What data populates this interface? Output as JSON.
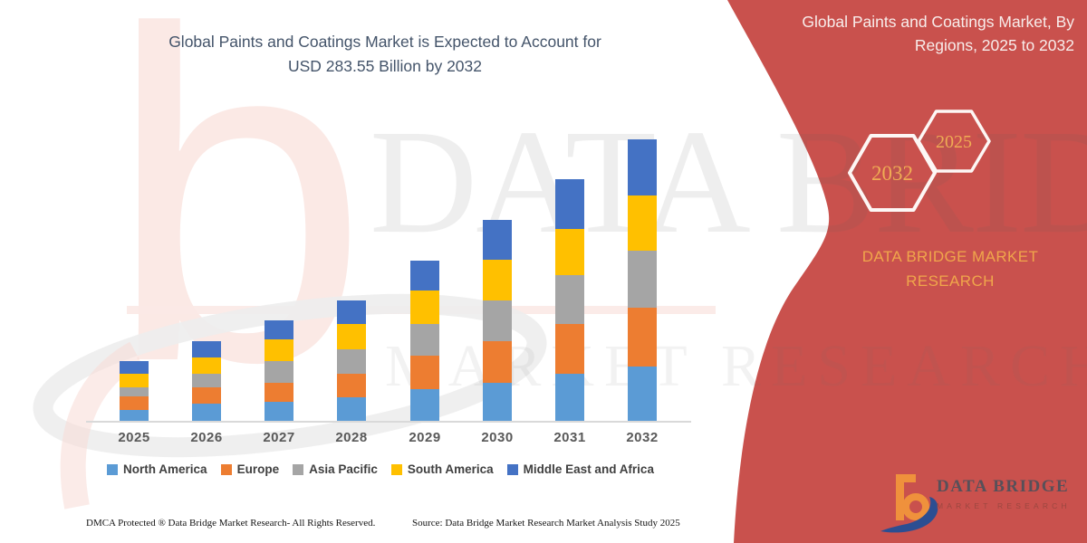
{
  "header": {
    "title_line1": "Global Paints and Coatings Market is Expected to Account for",
    "title_line2": "USD 283.55 Billion by 2032"
  },
  "side_panel": {
    "title_line1": "Global Paints and Coatings Market, By",
    "title_line2": "Regions, 2025 to 2032",
    "hexagons": [
      {
        "label": "2032"
      },
      {
        "label": "2025"
      }
    ],
    "brand_caption_line1": "DATA BRIDGE MARKET",
    "brand_caption_line2": "RESEARCH",
    "logo": {
      "name": "DATA BRIDGE",
      "tagline": "MARKET RESEARCH"
    },
    "colors": {
      "background": "#C9514D",
      "accent_gold": "#F0A64B",
      "hexagon_number": "#EFAC54",
      "hexagon_stroke": "#FDF7F5",
      "logo_orange": "#EF913C",
      "logo_blue": "#2C4E92"
    }
  },
  "watermark": {
    "line1": "DATA BRIDGE",
    "line2": "MARKET RESEARCH"
  },
  "chart_data": {
    "type": "bar",
    "stacked": true,
    "title": "Global Paints and Coatings Market is Expected to Account for USD 283.55 Billion by 2032",
    "unit": "USD Billion",
    "categories": [
      "2025",
      "2026",
      "2027",
      "2028",
      "2029",
      "2030",
      "2031",
      "2032"
    ],
    "series": [
      {
        "name": "North America",
        "color": "#5B9BD5",
        "values": [
          11.8,
          18.2,
          20.0,
          24.5,
          32.7,
          39.1,
          48.2,
          55.4
        ]
      },
      {
        "name": "Europe",
        "color": "#ED7D31",
        "values": [
          13.6,
          16.4,
          19.1,
          23.6,
          33.6,
          41.8,
          50.0,
          59.1
        ]
      },
      {
        "name": "Asia Pacific",
        "color": "#A5A5A5",
        "values": [
          9.1,
          13.6,
          21.8,
          24.5,
          31.8,
          40.9,
          49.1,
          57.3
        ]
      },
      {
        "name": "South America",
        "color": "#FFC000",
        "values": [
          13.6,
          16.4,
          21.8,
          25.5,
          33.6,
          40.9,
          46.4,
          55.4
        ]
      },
      {
        "name": "Middle East and Africa",
        "color": "#4472C4",
        "values": [
          12.7,
          16.4,
          19.1,
          23.6,
          30.0,
          40.0,
          50.0,
          56.4
        ]
      }
    ],
    "totals": [
      60.8,
      81.0,
      101.8,
      121.7,
      161.7,
      202.7,
      243.7,
      283.55
    ],
    "value_annotation": "Segment values estimated from bar heights; 2032 total anchored to USD 283.55 billion stated in the title",
    "xlabel": "",
    "ylabel": "",
    "y_axis_visible": false,
    "grid": false,
    "legend_position": "bottom",
    "title_color": "#44546A"
  },
  "footer": {
    "dmca": "DMCA Protected ® Data Bridge Market Research- All Rights Reserved.",
    "source": "Source: Data Bridge Market Research Market Analysis Study 2025"
  }
}
